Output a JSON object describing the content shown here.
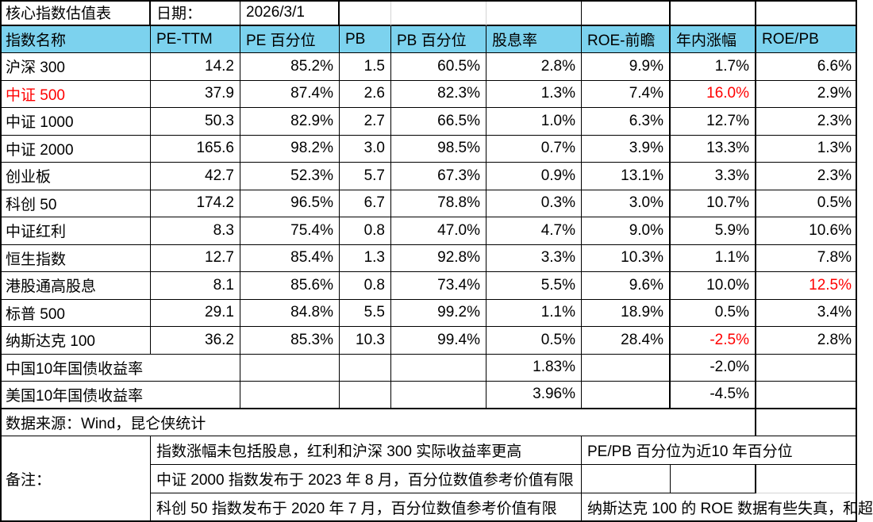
{
  "colors": {
    "header_bg": "#7CD2EE",
    "highlight_red": "#FF0000",
    "grid_black": "#000000",
    "grid_light": "#D4D4D4"
  },
  "chart_data": {
    "type": "table",
    "title": "核心指数估值表",
    "date_label": "日期：",
    "date_value": "2026/3/1",
    "columns": [
      "指数名称",
      "PE-TTM",
      "PE 百分位",
      "PB",
      "PB 百分位",
      "股息率",
      "ROE-前瞻",
      "年内涨幅",
      "ROE/PB"
    ],
    "rows": [
      [
        "沪深 300",
        "14.2",
        "85.2%",
        "1.5",
        "60.5%",
        "2.8%",
        "9.9%",
        "1.7%",
        "6.6%"
      ],
      [
        "中证 500",
        "37.9",
        "87.4%",
        "2.6",
        "82.3%",
        "1.3%",
        "7.4%",
        "16.0%",
        "2.9%"
      ],
      [
        "中证 1000",
        "50.3",
        "82.9%",
        "2.7",
        "66.5%",
        "1.0%",
        "6.3%",
        "12.7%",
        "2.3%"
      ],
      [
        "中证 2000",
        "165.6",
        "98.2%",
        "3.0",
        "98.5%",
        "0.7%",
        "3.9%",
        "13.3%",
        "1.3%"
      ],
      [
        "创业板",
        "42.7",
        "52.3%",
        "5.7",
        "67.3%",
        "0.9%",
        "13.1%",
        "3.3%",
        "2.3%"
      ],
      [
        "科创 50",
        "174.2",
        "96.5%",
        "6.7",
        "78.8%",
        "0.3%",
        "3.0%",
        "10.7%",
        "0.5%"
      ],
      [
        "中证红利",
        "8.3",
        "75.4%",
        "0.8",
        "47.0%",
        "4.7%",
        "9.0%",
        "5.9%",
        "10.6%"
      ],
      [
        "恒生指数",
        "12.7",
        "85.4%",
        "1.3",
        "92.8%",
        "3.3%",
        "10.3%",
        "1.1%",
        "7.8%"
      ],
      [
        "港股通高股息",
        "8.1",
        "85.6%",
        "0.8",
        "73.4%",
        "5.5%",
        "9.6%",
        "10.0%",
        "12.5%"
      ],
      [
        "标普 500",
        "29.1",
        "84.8%",
        "5.5",
        "99.2%",
        "1.1%",
        "18.9%",
        "0.5%",
        "3.4%"
      ],
      [
        "纳斯达克 100",
        "36.2",
        "85.3%",
        "10.3",
        "99.4%",
        "0.5%",
        "28.4%",
        "-2.5%",
        "2.8%"
      ]
    ],
    "bond_rows": [
      {
        "name": "中国10年国债收益率",
        "dividend_yield": "1.83%",
        "ytd_change": "-2.0%"
      },
      {
        "name": "美国10年国债收益率",
        "dividend_yield": "3.96%",
        "ytd_change": "-4.5%"
      }
    ],
    "source": "数据来源：Wind，昆仑侠统计",
    "notes": {
      "label": "备注：",
      "row1_main": "指数涨幅未包括股息，红利和沪深 300 实际收益率更高",
      "row1_side": "PE/PB 百分位为近10 年百分位",
      "row2_main": "中证 2000 指数发布于 2023 年 8 月，百分位数值参考价值有限",
      "row3_main": "科创 50 指数发布于 2020 年 7 月，百分位数值参考价值有限",
      "row3_side": "纳斯达克 100 的 ROE 数据有些失真，和超"
    }
  }
}
